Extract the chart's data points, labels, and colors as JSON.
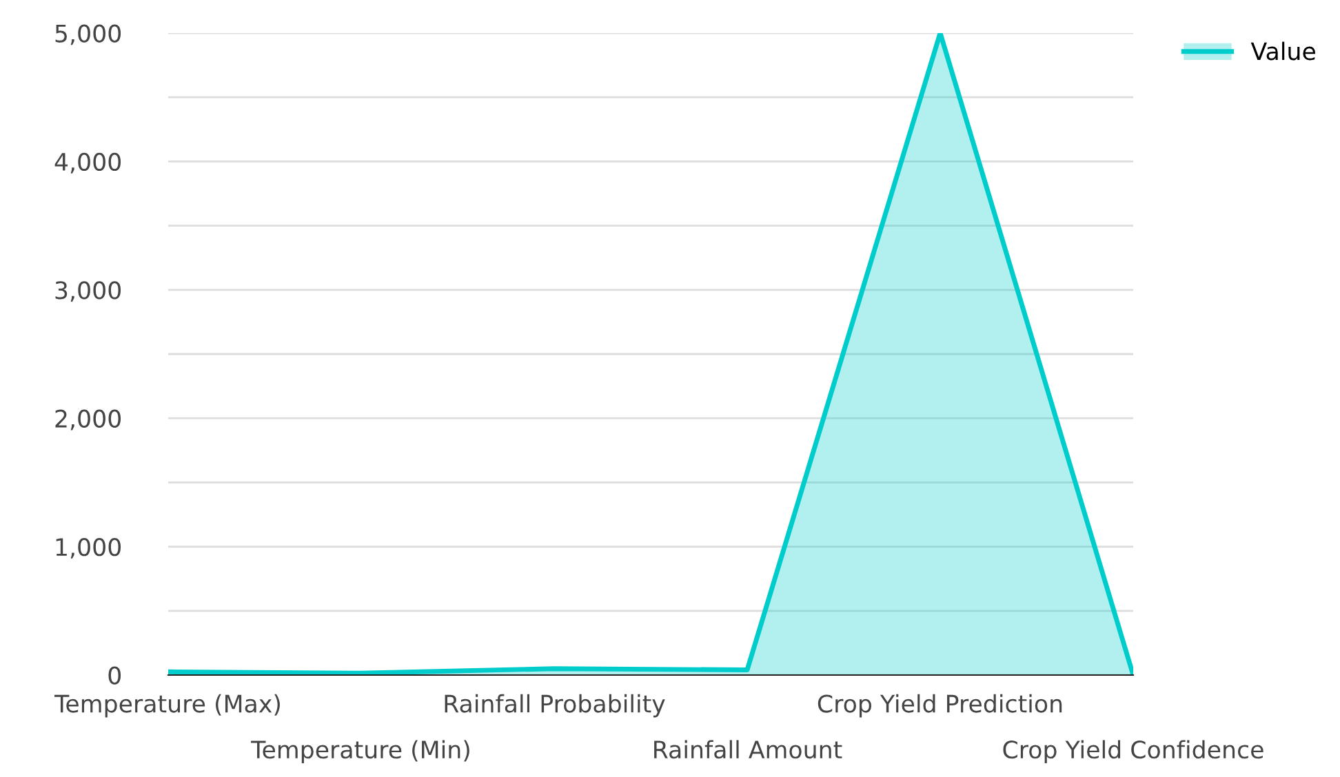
{
  "chart_data": {
    "type": "area",
    "categories": [
      "Temperature (Max)",
      "Temperature (Min)",
      "Rainfall Probability",
      "Rainfall Amount",
      "Crop Yield Prediction",
      "Crop Yield Confidence"
    ],
    "series": [
      {
        "name": "Value",
        "color": "#00cccc",
        "values": [
          25,
          15,
          50,
          40,
          5000,
          0
        ]
      }
    ],
    "ylim": [
      0,
      5000
    ],
    "yticks": [
      0,
      {
        "value": 500,
        "label": null
      },
      {
        "value": 1000,
        "label": "1,000"
      },
      {
        "value": 1500,
        "label": null
      },
      {
        "value": 2000,
        "label": "2,000"
      },
      {
        "value": 2500,
        "label": null
      },
      {
        "value": 3000,
        "label": "3,000"
      },
      {
        "value": 3500,
        "label": null
      },
      {
        "value": 4000,
        "label": "4,000"
      },
      {
        "value": 4500,
        "label": null
      },
      {
        "value": 5000,
        "label": "5,000"
      }
    ],
    "grid": "y",
    "legend": "top right"
  }
}
